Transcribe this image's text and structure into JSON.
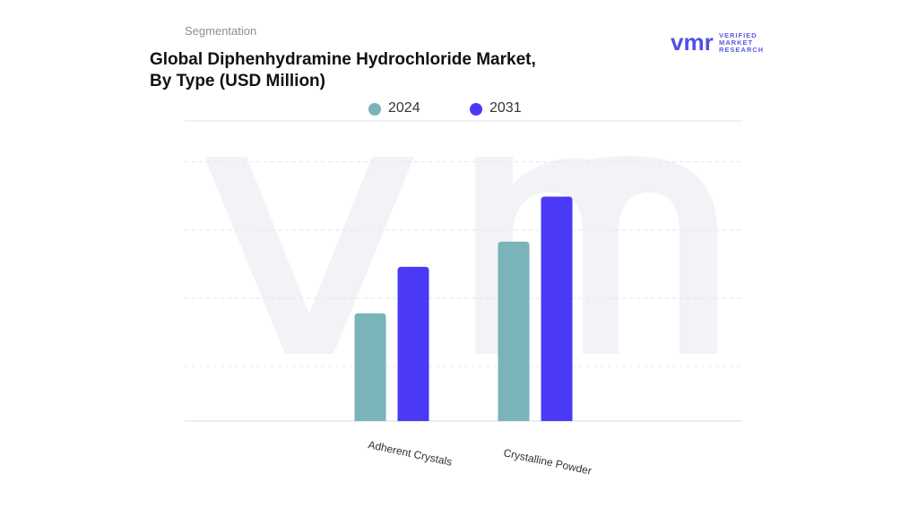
{
  "header": {
    "segment": "Segmentation",
    "title_line1": "Global Diphenhydramine Hydrochloride Market,",
    "title_line2": "By Type (USD Million)"
  },
  "logo": {
    "mark": "vmr",
    "line1": "VERIFIED",
    "line2": "MARKET",
    "line3": "RESEARCH",
    "color": "#5050e6"
  },
  "chart_data": {
    "type": "bar",
    "title": "Global Diphenhydramine Hydrochloride Market, By Type (USD Million)",
    "categories": [
      "Adherent Crystals",
      "Crystalline Powder"
    ],
    "series": [
      {
        "name": "2024",
        "color": "#7ab3b8",
        "values": [
          1.58,
          2.63
        ]
      },
      {
        "name": "2031",
        "color": "#4a3af5",
        "values": [
          2.26,
          3.29
        ]
      }
    ],
    "ylim": [
      0,
      4.4
    ],
    "grid": true,
    "y_tick_labels_shown": false,
    "legend_position": "top-center"
  }
}
